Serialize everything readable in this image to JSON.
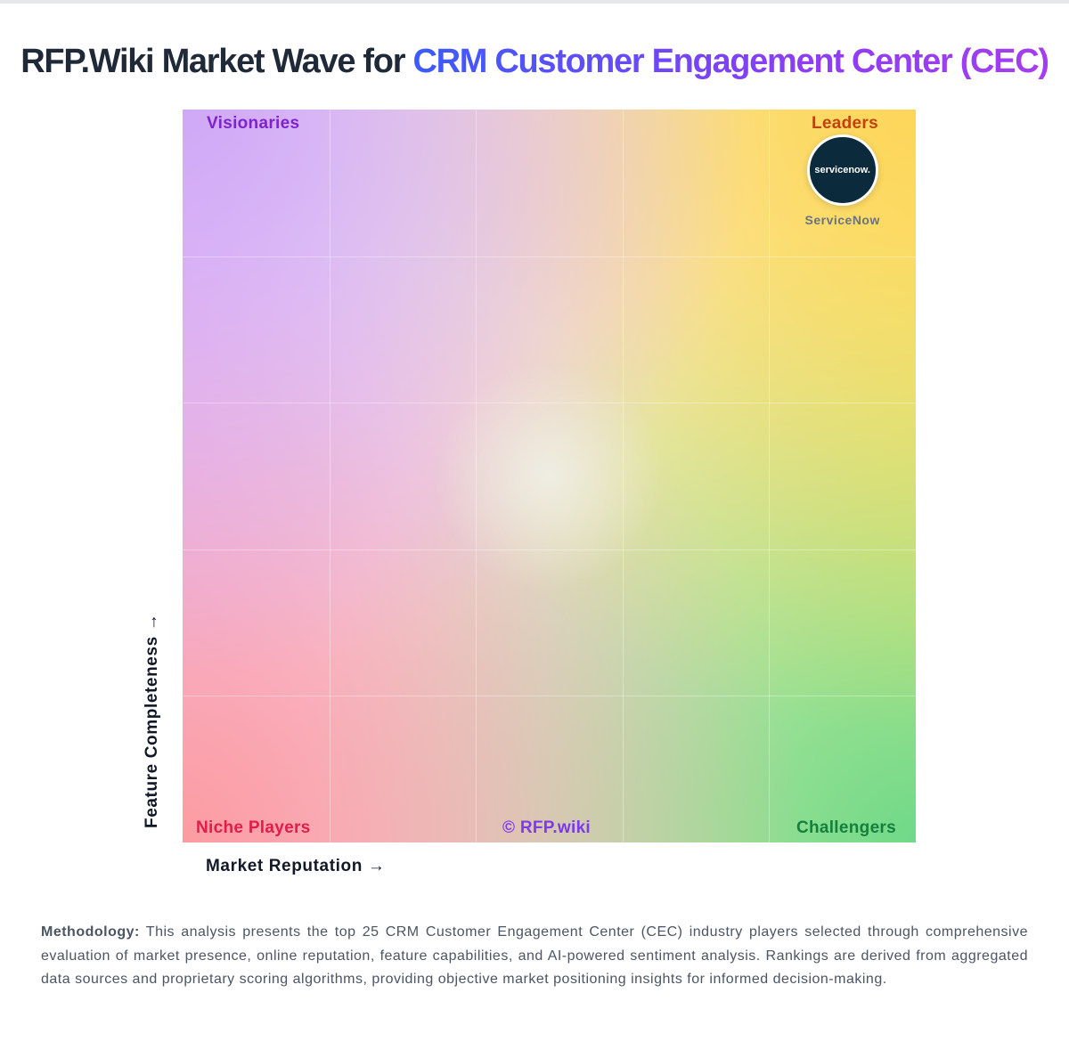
{
  "title": {
    "prefix": "RFP.Wiki Market Wave for ",
    "highlight": "CRM Customer Engagement Center (CEC)"
  },
  "chart_data": {
    "type": "scatter",
    "title": "RFP.Wiki Market Wave for CRM Customer Engagement Center (CEC)",
    "xlabel": "Market Reputation →",
    "ylabel": "Feature Completeness →",
    "xlim": [
      0,
      100
    ],
    "ylim": [
      0,
      100
    ],
    "grid": true,
    "quadrants": {
      "top_left": "Visionaries",
      "top_right": "Leaders",
      "bottom_left": "Niche Players",
      "bottom_right": "Challengers"
    },
    "watermark": "© RFP.wiki",
    "points": [
      {
        "name": "ServiceNow",
        "logo_text": "servicenow.",
        "x": 90,
        "y": 92
      }
    ],
    "colors": {
      "visionaries": "#7e22ce",
      "leaders": "#c2410c",
      "niche": "#e11d48",
      "challengers": "#15803d",
      "watermark": "#7c3aed"
    }
  },
  "methodology": {
    "label": "Methodology:",
    "text": " This analysis presents the top 25 CRM Customer Engagement Center (CEC) industry players selected through comprehensive evaluation of market presence, online reputation, feature capabilities, and AI-powered sentiment analysis. Rankings are derived from aggregated data sources and proprietary scoring algorithms, providing objective market positioning insights for informed decision-making."
  }
}
